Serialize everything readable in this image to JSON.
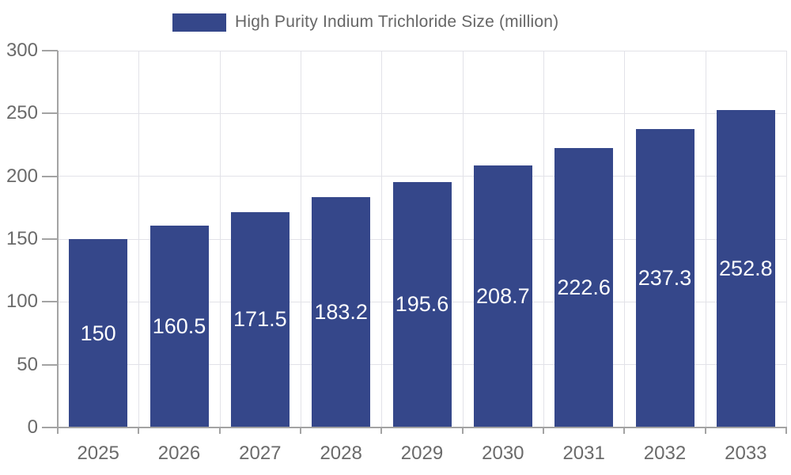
{
  "legend": {
    "label": "High Purity Indium Trichloride Size (million)"
  },
  "chart_data": {
    "type": "bar",
    "title": "High Purity Indium Trichloride Size (million)",
    "categories": [
      "2025",
      "2026",
      "2027",
      "2028",
      "2029",
      "2030",
      "2031",
      "2032",
      "2033"
    ],
    "series": [
      {
        "name": "High Purity Indium Trichloride Size (million)",
        "values": [
          150,
          160.5,
          171.5,
          183.2,
          195.6,
          208.7,
          222.6,
          237.3,
          252.8
        ]
      }
    ],
    "value_labels": [
      "150",
      "160.5",
      "171.5",
      "183.2",
      "195.6",
      "208.7",
      "222.6",
      "237.3",
      "252.8"
    ],
    "xlabel": "",
    "ylabel": "",
    "ylim": [
      0,
      300
    ],
    "yticks": [
      0,
      50,
      100,
      150,
      200,
      250,
      300
    ],
    "grid": true,
    "legend_position": "top-center",
    "colors": {
      "bar": "#35478a",
      "grid": "#e2e2e8",
      "axis": "#a3a3a3",
      "tick_label": "#6a6a6a",
      "legend_text": "#666666",
      "value_label": "#ffffff",
      "background": "#ffffff"
    }
  }
}
